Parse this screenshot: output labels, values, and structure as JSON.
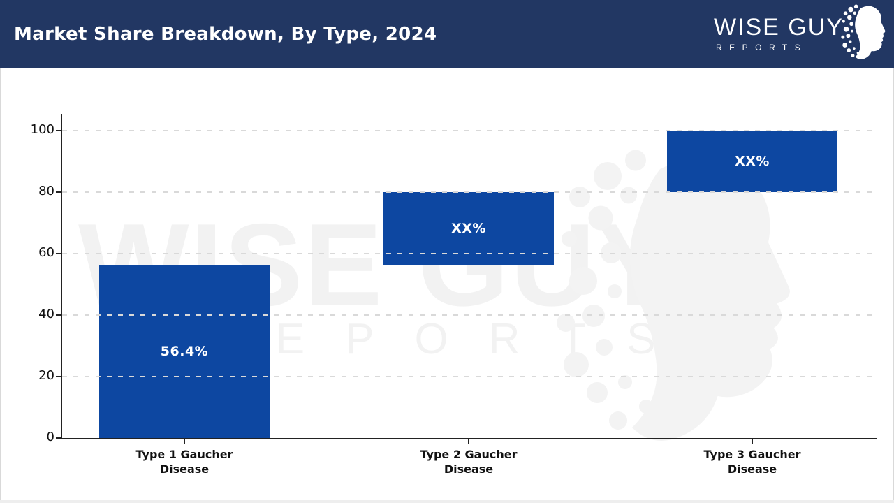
{
  "header": {
    "title": "Market Share Breakdown, By Type, 2024",
    "bg_color": "#223763"
  },
  "logo": {
    "line1": "WISE GUY",
    "line2": "REPORTS"
  },
  "watermark": {
    "line1": "WISE GUY",
    "line2": "REPORTS"
  },
  "colors": {
    "header_bg": "#223763",
    "bar": "#0d47a1",
    "bar_label": "#ffffff",
    "gridline": "#d9d9d9",
    "axis": "#222222",
    "tick_text": "#111111",
    "watermark": "#f2f2f2"
  },
  "chart_data": {
    "type": "bar",
    "subtype": "floating-waterfall",
    "title": "Market Share Breakdown, By Type, 2024",
    "categories": [
      "Type 1 Gaucher Disease",
      "Type 2 Gaucher Disease",
      "Type 3 Gaucher Disease"
    ],
    "category_lines": [
      [
        "Type 1 Gaucher",
        "Disease"
      ],
      [
        "Type 2 Gaucher",
        "Disease"
      ],
      [
        "Type 3 Gaucher",
        "Disease"
      ]
    ],
    "bars": [
      {
        "start": 0,
        "end": 56.4,
        "label": "56.4%"
      },
      {
        "start": 56.4,
        "end": 80,
        "label": "XX%"
      },
      {
        "start": 80,
        "end": 100,
        "label": "XX%"
      }
    ],
    "yticks": [
      0,
      20,
      40,
      60,
      80,
      100
    ],
    "ylim": [
      0,
      105.5
    ],
    "xlabel": "",
    "ylabel": "",
    "grid": "horizontal-dashed",
    "legend": "none",
    "bar_color": "#0d47a1",
    "value_label_color": "#ffffff"
  }
}
